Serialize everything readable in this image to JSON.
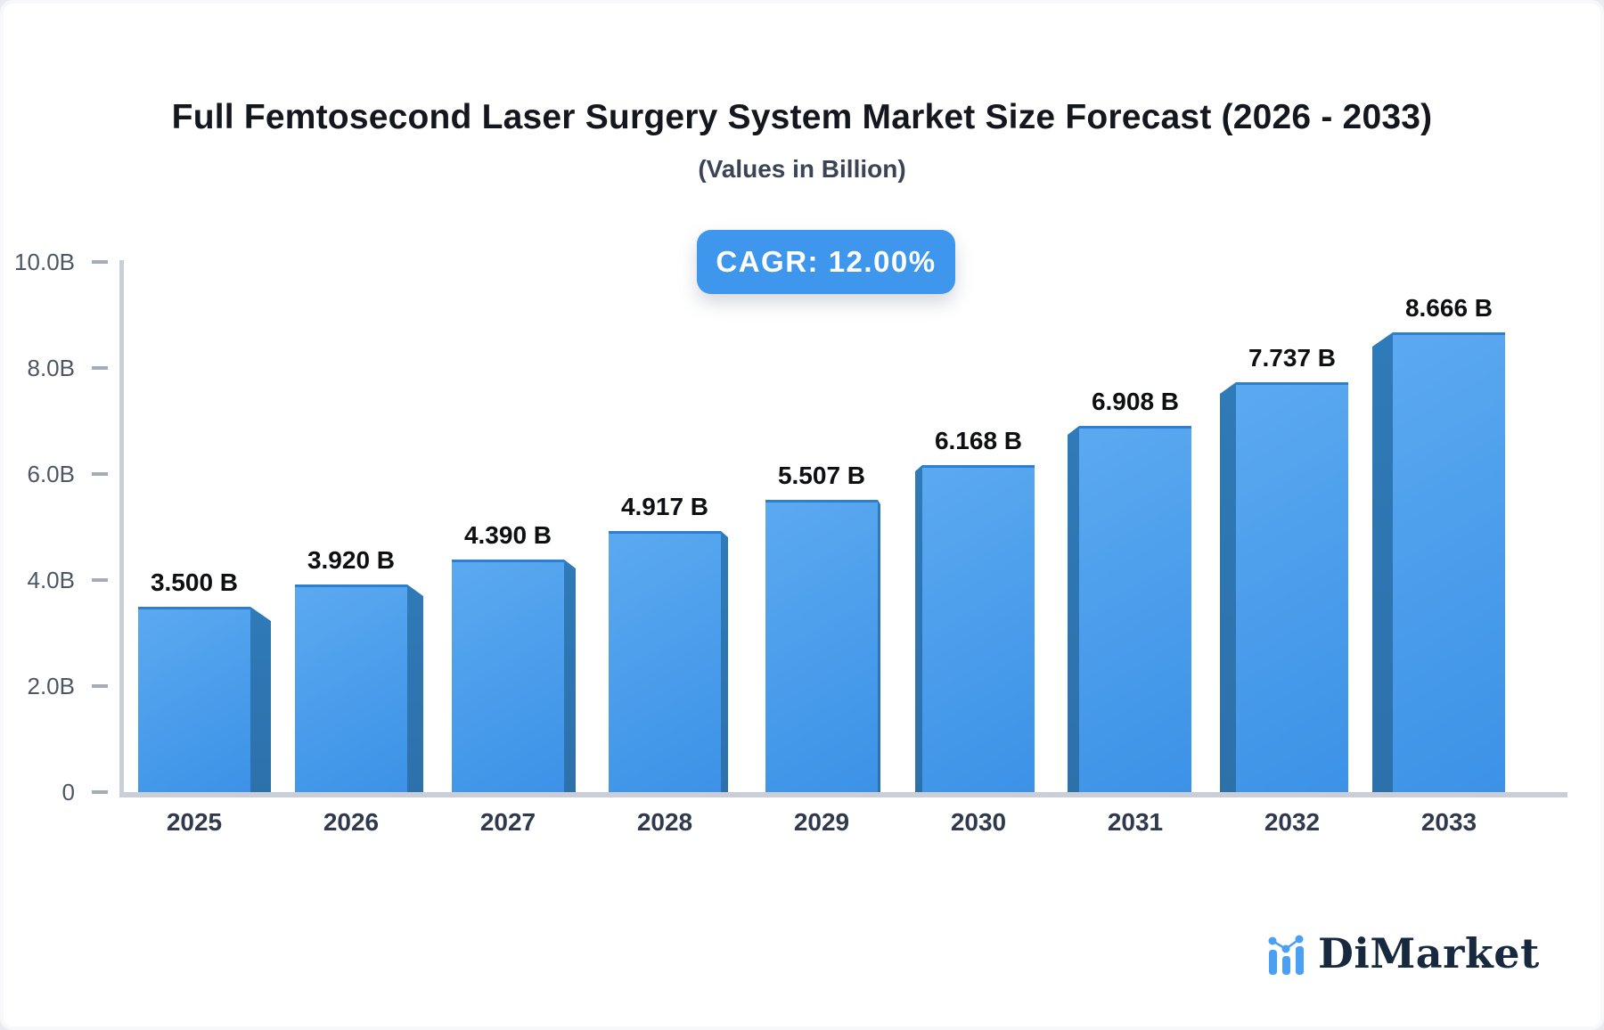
{
  "title": "Full Femtosecond Laser Surgery System Market Size Forecast (2026 - 2033)",
  "subtitle": "(Values in Billion)",
  "badge": {
    "label": "CAGR: 12.00%",
    "color": "#3E97EC"
  },
  "logo": {
    "text": "DiMarket",
    "icon": "mini-bar-chart-logo-icon",
    "icon_color": "#4AA0F2",
    "text_color": "#17293F"
  },
  "chart_data": {
    "type": "bar",
    "title": "Full Femtosecond Laser Surgery System Market Size Forecast (2026 - 2033)",
    "subtitle": "(Values in Billion)",
    "annotation": "CAGR: 12.00%",
    "categories": [
      "2025",
      "2026",
      "2027",
      "2028",
      "2029",
      "2030",
      "2031",
      "2032",
      "2033"
    ],
    "values": [
      3.5,
      3.92,
      4.39,
      4.917,
      5.507,
      6.168,
      6.908,
      7.737,
      8.666
    ],
    "value_labels": [
      "3.500 B",
      "3.920 B",
      "4.390 B",
      "4.917 B",
      "5.507 B",
      "6.168 B",
      "6.908 B",
      "7.737 B",
      "8.666 B"
    ],
    "yticks": [
      {
        "label": "10.0B",
        "value": 10
      },
      {
        "label": "8.0B",
        "value": 8
      },
      {
        "label": "6.0B",
        "value": 6
      },
      {
        "label": "4.0B",
        "value": 4
      },
      {
        "label": "2.0B",
        "value": 2
      },
      {
        "label": "0",
        "value": 0
      }
    ],
    "ylim": [
      0,
      10
    ],
    "xlabel": "",
    "ylabel": "",
    "grid": "off",
    "legend": "none",
    "style_3d": true,
    "bar_face_color_top": "#5BA9F0",
    "bar_face_color_bottom": "#3C92E7",
    "bar_side_color": "#2E76B2",
    "axis_color": "#C9CED8",
    "tick_color": "#A6ADB8"
  }
}
